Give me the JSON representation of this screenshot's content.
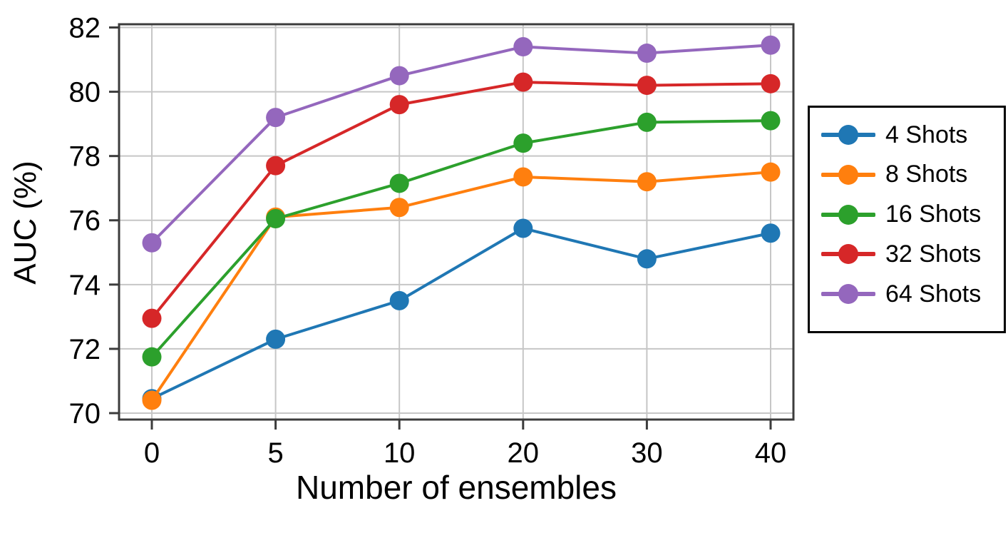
{
  "chart_data": {
    "type": "line",
    "title": "",
    "xlabel": "Number of ensembles",
    "ylabel": "AUC (%)",
    "x_scale": "categorical",
    "categories": [
      "0",
      "5",
      "10",
      "20",
      "30",
      "40"
    ],
    "y_ticks": [
      70,
      72,
      74,
      76,
      78,
      80,
      82
    ],
    "ylim": [
      69.8,
      82.1
    ],
    "grid": true,
    "grid_color": "#c6c6c6",
    "spine_color": "#3c3c3c",
    "tick_color": "#3c3c3c",
    "marker": "circle",
    "legend_position": "outside-right",
    "series": [
      {
        "name": "4 Shots",
        "color": "#1f77b4",
        "values": [
          70.45,
          72.3,
          73.5,
          75.75,
          74.8,
          75.6
        ]
      },
      {
        "name": "8 Shots",
        "color": "#ff7f0e",
        "values": [
          70.4,
          76.1,
          76.4,
          77.35,
          77.2,
          77.5
        ]
      },
      {
        "name": "16 Shots",
        "color": "#2ca02c",
        "values": [
          71.75,
          76.05,
          77.15,
          78.4,
          79.05,
          79.1
        ]
      },
      {
        "name": "32 Shots",
        "color": "#d62728",
        "values": [
          72.95,
          77.7,
          79.6,
          80.3,
          80.2,
          80.25
        ]
      },
      {
        "name": "64 Shots",
        "color": "#9467bd",
        "values": [
          75.3,
          79.2,
          80.5,
          81.4,
          81.2,
          81.45
        ]
      }
    ]
  }
}
